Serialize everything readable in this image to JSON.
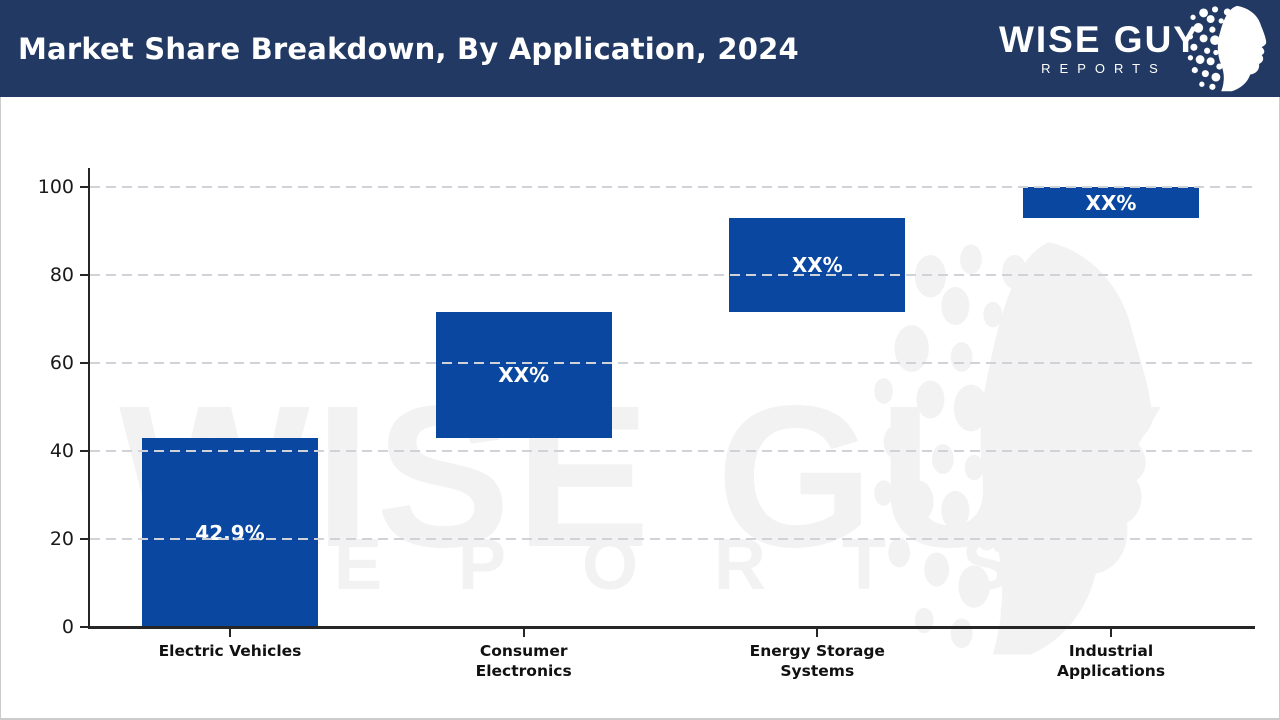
{
  "header": {
    "title": "Market Share Breakdown, By Application, 2024",
    "logo": {
      "wordmark": "WISE GUY",
      "subtext": "REPORTS"
    }
  },
  "watermark": {
    "wordmark": "WISE GUY",
    "subtext": "REPORTS"
  },
  "colors": {
    "header_bg": "#223a63",
    "bar": "#0a47a0",
    "bar_label": "#ffffff",
    "axis": "#262626",
    "gridline": "#cfd2d6",
    "watermark": "#f2f2f3"
  },
  "chart_data": {
    "type": "bar",
    "subtype": "waterfall",
    "title": "Market Share Breakdown, By Application, 2024",
    "categories": [
      "Electric Vehicles",
      "Consumer\nElectronics",
      "Energy Storage\nSystems",
      "Industrial\nApplications"
    ],
    "series": [
      {
        "name": "Market share (%)",
        "values": [
          42.9,
          28.6,
          21.4,
          7.1
        ],
        "cumulative_start": [
          0,
          42.9,
          71.5,
          92.9
        ],
        "cumulative_end": [
          42.9,
          71.5,
          92.9,
          100
        ],
        "bar_labels": [
          "42.9%",
          "XX%",
          "XX%",
          "XX%"
        ]
      }
    ],
    "xlabel": "",
    "ylabel": "",
    "ylim": [
      0,
      100
    ],
    "yticks": [
      0,
      20,
      40,
      60,
      80,
      100
    ],
    "grid": {
      "horizontal": true,
      "style": "dashed",
      "drawn_over_bars": true
    },
    "legend": "none"
  }
}
